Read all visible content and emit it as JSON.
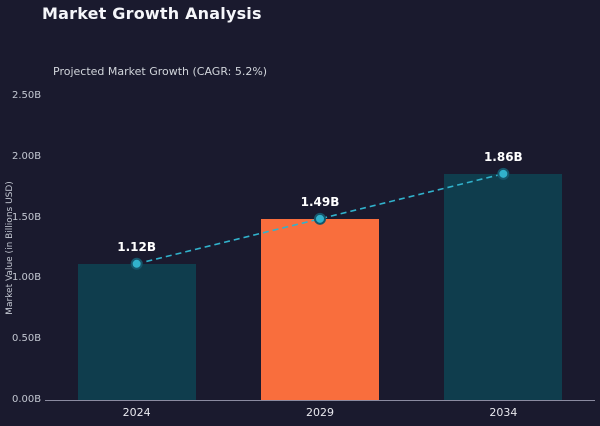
{
  "page": {
    "background": "#1a1a2e"
  },
  "header": {
    "title": "Market Growth Analysis"
  },
  "chart_data": {
    "type": "bar",
    "title": "Projected Market Growth (CAGR: 5.2%)",
    "categories": [
      "2024",
      "2029",
      "2034"
    ],
    "values": [
      1.12,
      1.49,
      1.86
    ],
    "value_labels": [
      "1.12B",
      "1.49B",
      "1.86B"
    ],
    "series": [
      {
        "name": "Market Value",
        "values": [
          1.12,
          1.49,
          1.86
        ]
      }
    ],
    "bar_colors": [
      "#0f3d4d",
      "#f96e3d",
      "#0f3d4d"
    ],
    "line_color": "#31b2cc",
    "line_style": "dashed",
    "marker_color": "#31b2cc",
    "marker_stroke": "#15566b",
    "xlabel": "",
    "ylabel": "Market Value (in Billions USD)",
    "ylim": [
      0,
      2.5
    ],
    "yticks": [
      0,
      0.5,
      1.0,
      1.5,
      2.0,
      2.5
    ],
    "ytick_labels": [
      "0.00B",
      "0.50B",
      "1.00B",
      "1.50B",
      "2.00B",
      "2.50B"
    ],
    "grid": false,
    "legend": "none"
  }
}
